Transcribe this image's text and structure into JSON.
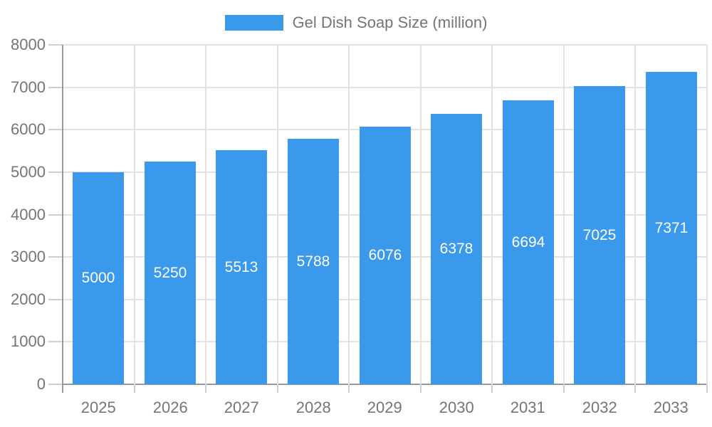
{
  "legend": {
    "series_label": "Gel Dish Soap Size (million)"
  },
  "chart_data": {
    "type": "bar",
    "title": "Gel Dish Soap Size (million)",
    "categories": [
      "2025",
      "2026",
      "2027",
      "2028",
      "2029",
      "2030",
      "2031",
      "2032",
      "2033"
    ],
    "series": [
      {
        "name": "Gel Dish Soap Size (million)",
        "values": [
          5000,
          5250,
          5513,
          5788,
          6076,
          6378,
          6694,
          7025,
          7371
        ]
      }
    ],
    "xlabel": "",
    "ylabel": "",
    "ylim": [
      0,
      8000
    ],
    "ytick_step": 1000,
    "yticks": [
      0,
      1000,
      2000,
      3000,
      4000,
      5000,
      6000,
      7000,
      8000
    ],
    "grid": true,
    "legend_position": "top",
    "bar_labels_inside": true,
    "colors": {
      "bar": "#3B99EC",
      "bar_label": "#FFFFFF",
      "axis_text": "#757575",
      "grid_line": "#E2E2E2",
      "axis_line": "#999999",
      "tick_line": "#CFCFCF",
      "background": "#FFFFFF"
    }
  }
}
